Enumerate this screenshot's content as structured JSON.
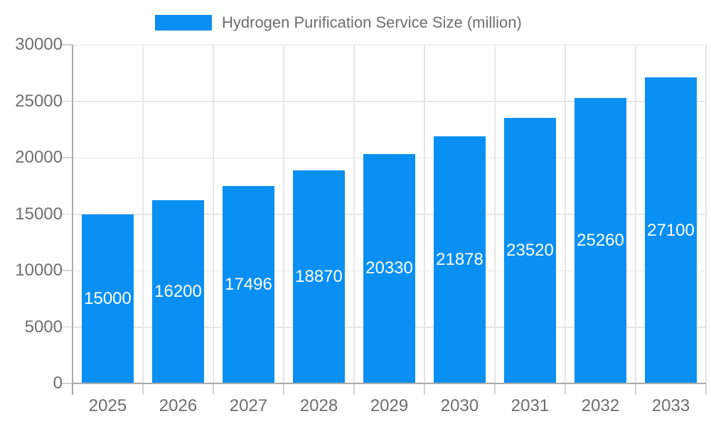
{
  "chart_data": {
    "type": "bar",
    "title": "Hydrogen Purification Service Size (million)",
    "legend_entries": [
      "Hydrogen Purification Service Size (million)"
    ],
    "legend_position": "top",
    "categories": [
      "2025",
      "2026",
      "2027",
      "2028",
      "2029",
      "2030",
      "2031",
      "2032",
      "2033"
    ],
    "values": [
      15000,
      16200,
      17496,
      18870,
      20330,
      21878,
      23520,
      25260,
      27100
    ],
    "bar_value_labels": [
      "15000",
      "16200",
      "17496",
      "18870",
      "20330",
      "21878",
      "23520",
      "25260",
      "27100"
    ],
    "xlabel": "",
    "ylabel": "",
    "ylim": [
      0,
      30000
    ],
    "ytick_step": 5000,
    "ytick_labels": [
      "0",
      "5000",
      "10000",
      "15000",
      "20000",
      "25000",
      "30000"
    ],
    "grid": true,
    "colors": {
      "bar": "#0A8FF2",
      "bar_label_text": "#ffffff",
      "axis_text": "#6e6e6e",
      "gridline": "#e6e6e6",
      "axis_line": "#ababab",
      "tick": "#d2d2d2",
      "background": "#ffffff"
    }
  }
}
